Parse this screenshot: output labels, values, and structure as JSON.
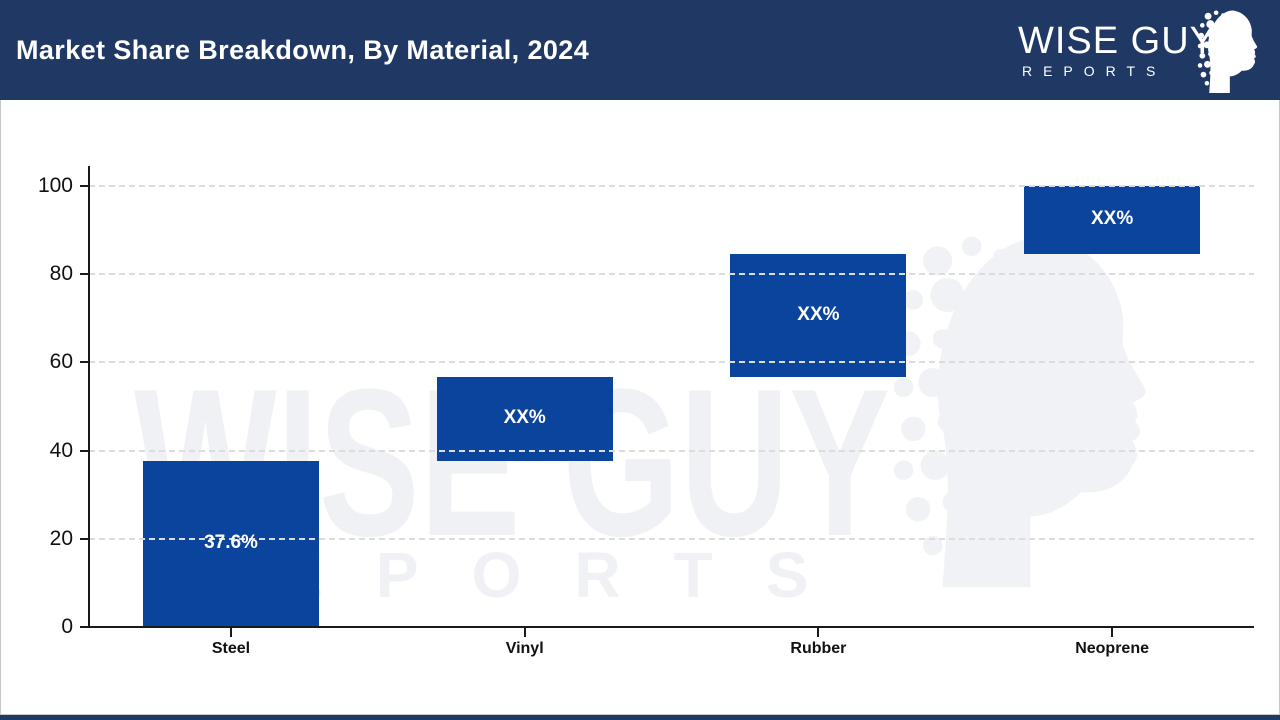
{
  "header": {
    "title": "Market Share Breakdown, By Material, 2024",
    "logo": {
      "line1": "WISE GUY",
      "line2": "REPORTS"
    }
  },
  "watermark": {
    "line1": "WISE GUY",
    "line2": "REPORTS"
  },
  "colors": {
    "header_bg": "#1f3864",
    "bar_blue": "#0a449c",
    "axis": "#1a1a1a",
    "gridline": "#dcdcdc",
    "watermark": "#eff1f4",
    "bar_label_text": "#ffffff"
  },
  "chart_data": {
    "type": "bar",
    "subtype": "waterfall",
    "title": "Market Share Breakdown, By Material, 2024",
    "categories": [
      "Steel",
      "Vinyl",
      "Rubber",
      "Neoprene"
    ],
    "bars": [
      {
        "category": "Steel",
        "start": 0,
        "end": 37.6,
        "label": "37.6%"
      },
      {
        "category": "Vinyl",
        "start": 37.6,
        "end": 56.6,
        "label": "XX%"
      },
      {
        "category": "Rubber",
        "start": 56.6,
        "end": 84.6,
        "label": "XX%"
      },
      {
        "category": "Neoprene",
        "start": 84.6,
        "end": 100,
        "label": "XX%"
      }
    ],
    "yticks": [
      0,
      20,
      40,
      60,
      80,
      100
    ],
    "ylim": [
      0,
      105
    ],
    "xlabel": "",
    "ylabel": "",
    "grid": "dashed-horizontal",
    "legend": null
  }
}
